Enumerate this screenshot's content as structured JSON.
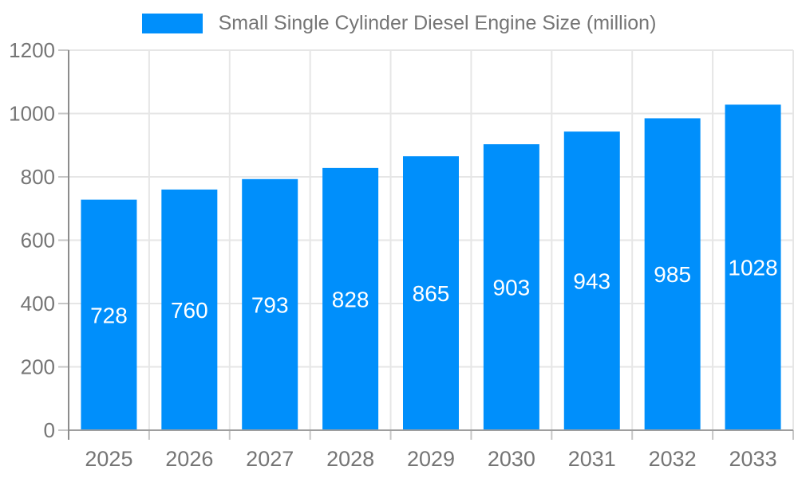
{
  "legend": {
    "label": "Small Single Cylinder Diesel Engine Size (million)"
  },
  "chart_data": {
    "type": "bar",
    "title": "Small Single Cylinder Diesel Engine Size (million)",
    "categories": [
      "2025",
      "2026",
      "2027",
      "2028",
      "2029",
      "2030",
      "2031",
      "2032",
      "2033"
    ],
    "series": [
      {
        "name": "Small Single Cylinder Diesel Engine Size (million)",
        "values": [
          728,
          760,
          793,
          828,
          865,
          903,
          943,
          985,
          1028
        ]
      }
    ],
    "xlabel": "",
    "ylabel": "",
    "ylim": [
      0,
      1200
    ],
    "yticks": [
      0,
      200,
      400,
      600,
      800,
      1000,
      1200
    ],
    "grid": true,
    "bar_value_labels": [
      728,
      760,
      793,
      828,
      865,
      903,
      943,
      985,
      1028
    ],
    "legend_position": "top-center",
    "colors": {
      "bar": "#008ffb",
      "bar_label_text": "#ffffff",
      "axis_text": "#757575",
      "gridline": "#e6e6e6",
      "x_axis_line": "#9e9e9e",
      "y_axis_line": "#8c8c8c",
      "tick": "#c6c6c6"
    }
  }
}
